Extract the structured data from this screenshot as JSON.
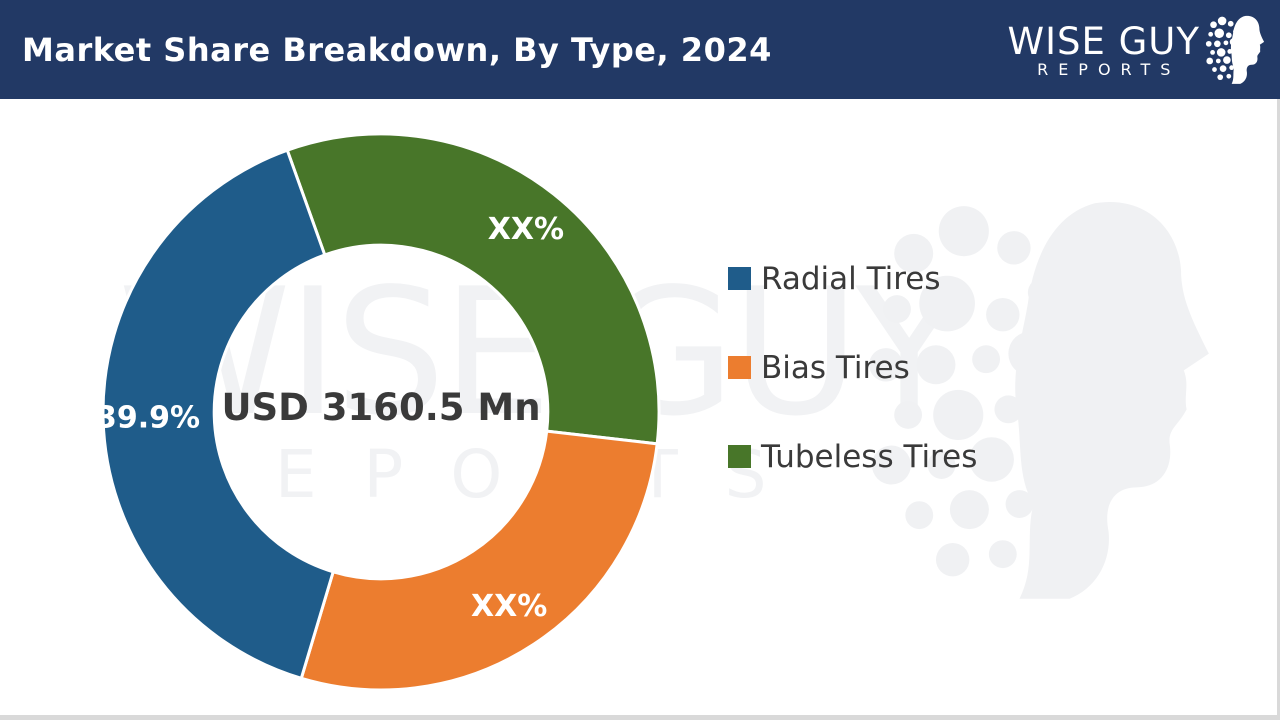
{
  "header": {
    "title": "Market Share Breakdown, By Type, 2024",
    "logo": {
      "line1": "WISE GUY",
      "line2": "REPORTS"
    }
  },
  "watermark": {
    "line1": "WISE GUY",
    "line2": "REPORTS"
  },
  "chart_data": {
    "type": "pie",
    "subtype": "donut",
    "title": "Market Share Breakdown, By Type, 2024",
    "center_label": "USD 3160.5 Mn",
    "donut_hole_ratio": 0.6,
    "start_angle_deg": -19.7,
    "segments": [
      {
        "name": "Tubeless Tires",
        "display_label": "XX%",
        "value_pct": 32.3,
        "color": "#487629"
      },
      {
        "name": "Bias Tires",
        "display_label": "XX%",
        "value_pct": 27.8,
        "color": "#ec7d2f"
      },
      {
        "name": "Radial Tires",
        "display_label": "39.9%",
        "value_pct": 39.9,
        "color": "#1f5c8a"
      }
    ],
    "legend": [
      {
        "label": "Radial Tires",
        "color": "#1f5c8a"
      },
      {
        "label": "Bias Tires",
        "color": "#ec7d2f"
      },
      {
        "label": "Tubeless Tires",
        "color": "#487629"
      }
    ],
    "legend_position": "right"
  },
  "colors": {
    "header_bg": "#223965",
    "label_text": "#ffffff",
    "center_text": "#3a3a3a",
    "watermark": "#f1f2f4",
    "border": "#d9d9d9"
  }
}
